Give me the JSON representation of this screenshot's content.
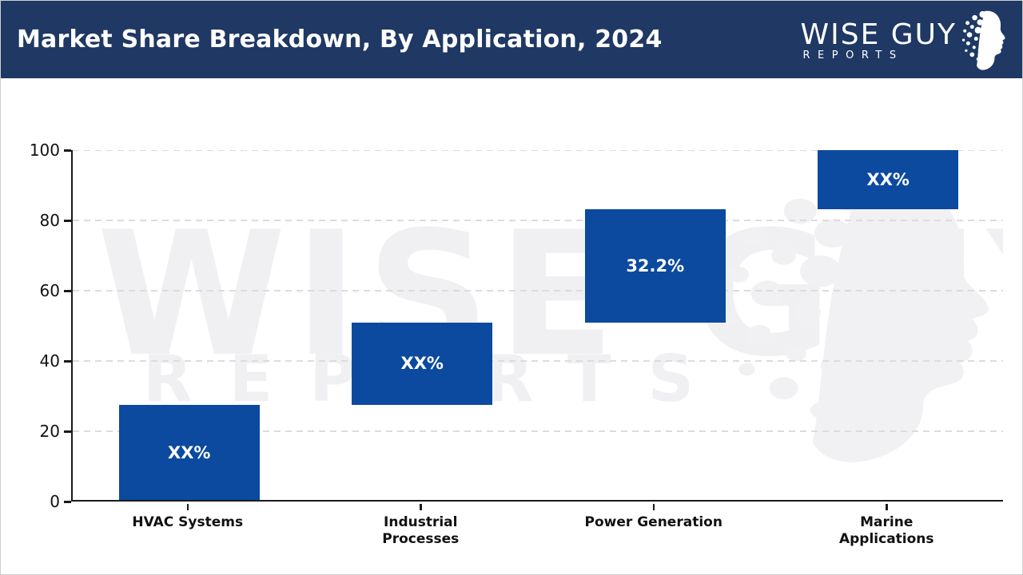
{
  "header": {
    "title": "Market Share Breakdown, By Application, 2024",
    "logo": {
      "line1": "WISE GUY",
      "line2": "REPORTS"
    }
  },
  "watermark": {
    "line1": "WISE GUY",
    "line2": "REPORTS"
  },
  "colors": {
    "header_bg": "#1f3864",
    "bar": "#0b4a9f",
    "bar_label": "#ffffff",
    "gridline": "#dcdcdc",
    "axis": "#1a1a1a",
    "watermark": "#f0f0f3"
  },
  "chart_data": {
    "type": "bar",
    "subtype": "floating-waterfall",
    "title": "Market Share Breakdown, By Application, 2024",
    "xlabel": "",
    "ylabel": "",
    "categories": [
      "HVAC Systems",
      "Industrial\nProcesses",
      "Power Generation",
      "Marine\nApplications"
    ],
    "segments": [
      {
        "category": "HVAC Systems",
        "start": 0,
        "end": 27.6,
        "value": 27.6,
        "label": "XX%"
      },
      {
        "category": "Industrial\nProcesses",
        "start": 27.6,
        "end": 50.9,
        "value": 23.3,
        "label": "XX%"
      },
      {
        "category": "Power Generation",
        "start": 50.9,
        "end": 83.1,
        "value": 32.2,
        "label": "32.2%"
      },
      {
        "category": "Marine\nApplications",
        "start": 83.1,
        "end": 100.0,
        "value": 16.9,
        "label": "XX%"
      }
    ],
    "yticks": [
      0,
      20,
      40,
      60,
      80,
      100
    ],
    "ylim": [
      0,
      100
    ],
    "grid": "horizontal-dashed",
    "legend": "none"
  }
}
